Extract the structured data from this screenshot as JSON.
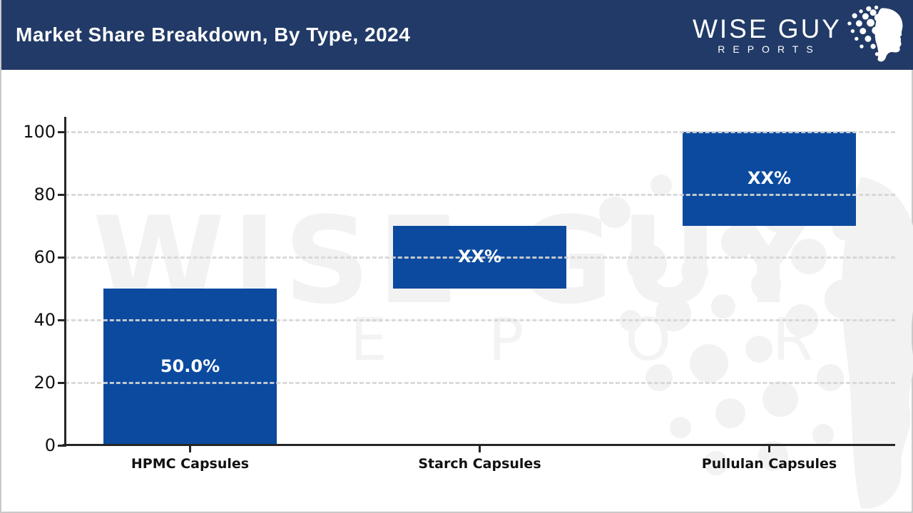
{
  "header": {
    "title": "Market Share Breakdown, By Type, 2024",
    "logo": {
      "line1": "WISE GUY",
      "line2": "REPORTS",
      "face_icon": "dotted-head-profile"
    }
  },
  "watermark": {
    "line1": "WISE GUY",
    "line2": "R E P O R T S"
  },
  "chart_data": {
    "type": "bar",
    "subtype": "waterfall-floating-bars",
    "title": "Market Share Breakdown, By Type, 2024",
    "categories": [
      "HPMC Capsules",
      "Starch Capsules",
      "Pullulan Capsules"
    ],
    "bars": [
      {
        "category": "HPMC Capsules",
        "start": 0,
        "end": 50,
        "label": "50.0%"
      },
      {
        "category": "Starch Capsules",
        "start": 50,
        "end": 70,
        "label": "XX%"
      },
      {
        "category": "Pullulan Capsules",
        "start": 70,
        "end": 100,
        "label": "XX%"
      }
    ],
    "yticks": [
      0,
      20,
      40,
      60,
      80,
      100
    ],
    "ylim": [
      0,
      105
    ],
    "xlabel": "",
    "ylabel": "",
    "grid": true,
    "grid_style": "dashed",
    "legend": "none",
    "bar_color": "#0B4A9E",
    "bar_label_color": "#ffffff"
  },
  "colors": {
    "header_bg": "#213A67",
    "bar": "#0B4A9E",
    "axis": "#262626",
    "grid": "#D6D6D6",
    "watermark": "#F2F2F2"
  }
}
